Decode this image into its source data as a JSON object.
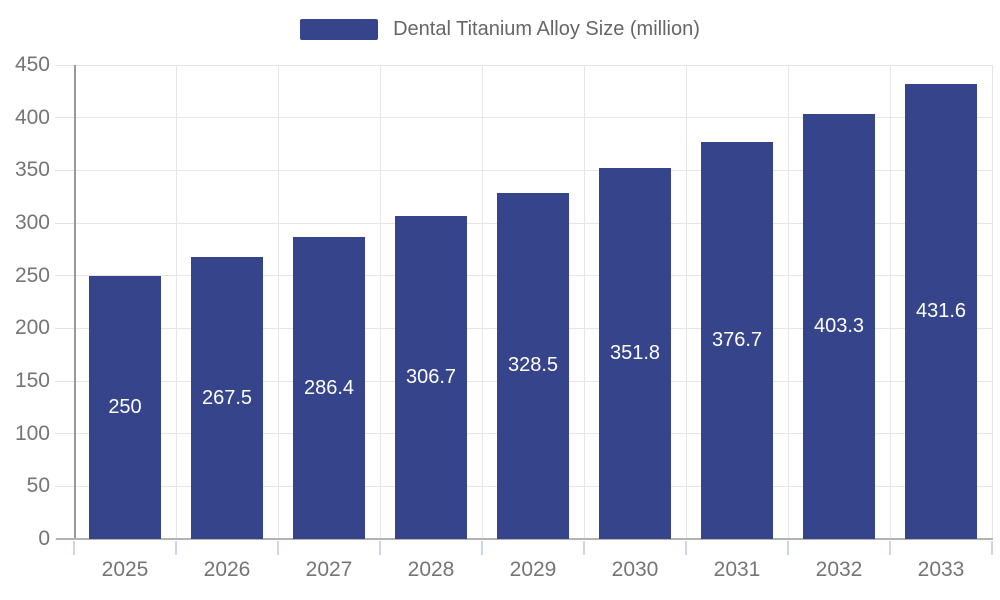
{
  "legend": {
    "label": "Dental Titanium Alloy Size (million)"
  },
  "chart_data": {
    "type": "bar",
    "title": "Dental Titanium Alloy Size (million)",
    "categories": [
      "2025",
      "2026",
      "2027",
      "2028",
      "2029",
      "2030",
      "2031",
      "2032",
      "2033"
    ],
    "values": [
      250,
      267.5,
      286.4,
      306.7,
      328.5,
      351.8,
      376.7,
      403.3,
      431.6
    ],
    "xlabel": "",
    "ylabel": "",
    "ylim": [
      0,
      450
    ],
    "ytick_step": 50,
    "yticks": [
      0,
      50,
      100,
      150,
      200,
      250,
      300,
      350,
      400,
      450
    ],
    "grid": true,
    "legend_position": "top",
    "value_labels": "inside-center"
  },
  "colors": {
    "bar": "#36458b",
    "bar_value_text": "#ffffff",
    "axis_text": "#757575",
    "legend_text": "#666666",
    "gridline": "#e6e6e6",
    "y_spine": "#999999",
    "x_axis_line": "#b3b3b3",
    "x_tick": "#ccd6eb",
    "background": "#ffffff"
  }
}
